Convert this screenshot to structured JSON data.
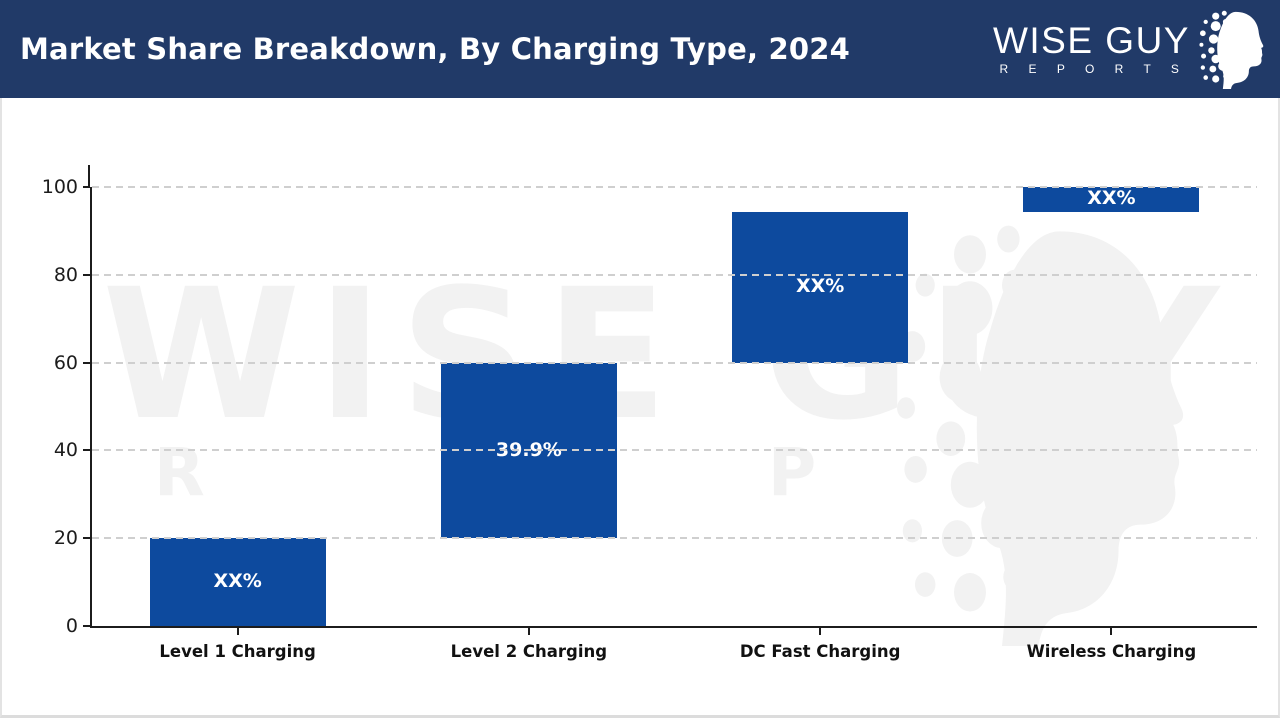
{
  "header": {
    "title": "Market Share Breakdown, By Charging Type, 2024",
    "logo": {
      "brand": "WISE GUY",
      "tagline": "R E P O R T S"
    }
  },
  "watermark": {
    "brand": "WISE GUY",
    "tagline": "R E P O R T S"
  },
  "icons": {
    "logo_head": "wise-guy-dotted-head-icon"
  },
  "colors": {
    "header_bg": "#213a68",
    "bar": "#0d4a9e",
    "bar_label": "#ffffff",
    "grid": "#cfcfcf",
    "axis": "#1c1c1c",
    "watermark": "#f2f2f2"
  },
  "chart_data": {
    "type": "bar",
    "subtype": "waterfall",
    "title": "Market Share Breakdown, By Charging Type, 2024",
    "categories": [
      "Level 1 Charging",
      "Level 2 Charging",
      "DC Fast Charging",
      "Wireless Charging"
    ],
    "segments": [
      {
        "category": "Level 1 Charging",
        "start": 0,
        "end": 20,
        "label": "XX%"
      },
      {
        "category": "Level 2 Charging",
        "start": 20,
        "end": 59.9,
        "label": "39.9%"
      },
      {
        "category": "DC Fast Charging",
        "start": 59.9,
        "end": 94.4,
        "label": "XX%"
      },
      {
        "category": "Wireless Charging",
        "start": 94.4,
        "end": 100,
        "label": "XX%"
      }
    ],
    "ylim": [
      0,
      100
    ],
    "y_ticks": [
      0,
      20,
      40,
      60,
      80,
      100
    ],
    "xlabel": "",
    "ylabel": "",
    "grid": "horizontal-dashed",
    "legend": "none"
  }
}
